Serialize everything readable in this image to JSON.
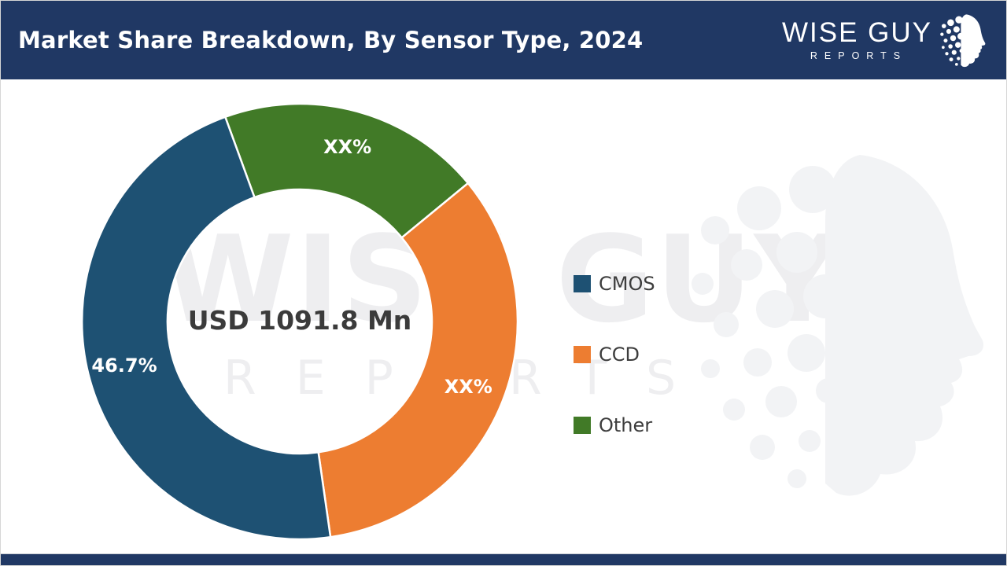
{
  "header": {
    "title": "Market Share Breakdown, By Sensor Type, 2024",
    "bg_color": "#203864",
    "logo": {
      "line1": "WISE GUY",
      "line2": "REPORTS"
    }
  },
  "watermark": {
    "line1": "WISE GUY",
    "line2": "REPORTS"
  },
  "chart_data": {
    "type": "pie",
    "subtype": "donut",
    "title": "Market Share Breakdown, By Sensor Type, 2024",
    "center_label": "USD 1091.8 Mn",
    "unit": "USD Mn",
    "total_value_display": "USD 1091.8 Mn",
    "start_angle_deg": -20,
    "legend_position": "right",
    "separator_color": "#ffffff",
    "categories": [
      "CMOS",
      "CCD",
      "Other"
    ],
    "values": [
      46.7,
      33.7,
      19.6
    ],
    "segments": [
      {
        "label": "CMOS",
        "value_pct": 46.7,
        "display_label": "46.7%",
        "color": "#1E5173"
      },
      {
        "label": "CCD",
        "value_pct": 33.7,
        "display_label": "XX%",
        "color": "#ED7D31"
      },
      {
        "label": "Other",
        "value_pct": 19.6,
        "display_label": "XX%",
        "color": "#417A27"
      }
    ]
  },
  "colors": {
    "header_bg": "#203864",
    "footer_bg": "#203864",
    "watermark": "#eeeef0",
    "center_text": "#3b3b3b",
    "legend_text": "#3d3d3d"
  }
}
